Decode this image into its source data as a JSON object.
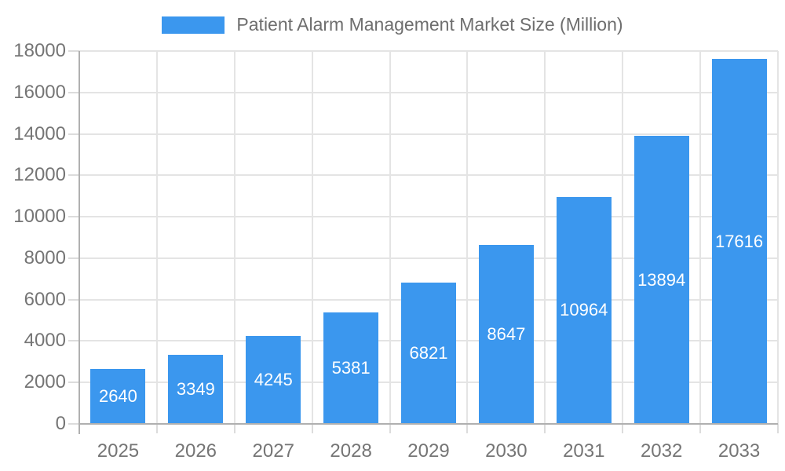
{
  "header": {
    "legend": {
      "label": "Patient Alarm Management Market Size (Million)"
    }
  },
  "chart_data": {
    "type": "bar",
    "title": "Patient Alarm Management Market Size (Million)",
    "categories": [
      "2025",
      "2026",
      "2027",
      "2028",
      "2029",
      "2030",
      "2031",
      "2032",
      "2033"
    ],
    "series": [
      {
        "name": "Patient Alarm Management Market Size (Million)",
        "values": [
          2640,
          3349,
          4245,
          5381,
          6821,
          8647,
          10964,
          13894,
          17616
        ]
      }
    ],
    "value_labels": {
      "position": "inside-center",
      "color": "#FFFFFF"
    },
    "xlabel": "",
    "ylabel": "",
    "ylim": [
      0,
      18000
    ],
    "ytick_step": 2000,
    "y_tick_labels": [
      "0",
      "2000",
      "4000",
      "6000",
      "8000",
      "10000",
      "12000",
      "14000",
      "16000",
      "18000"
    ],
    "grid": true,
    "legend_position": "top-center",
    "colors": {
      "bar": "#3B97EE",
      "grid_line": "#E4E4E4",
      "axis_line": "#B0B0B0",
      "tick_line": "#DCDCDC",
      "tick_text": "#757575",
      "title_text": "#6E6E6E",
      "value_label_text": "#FFFFFF",
      "background": "#FFFFFF"
    }
  }
}
